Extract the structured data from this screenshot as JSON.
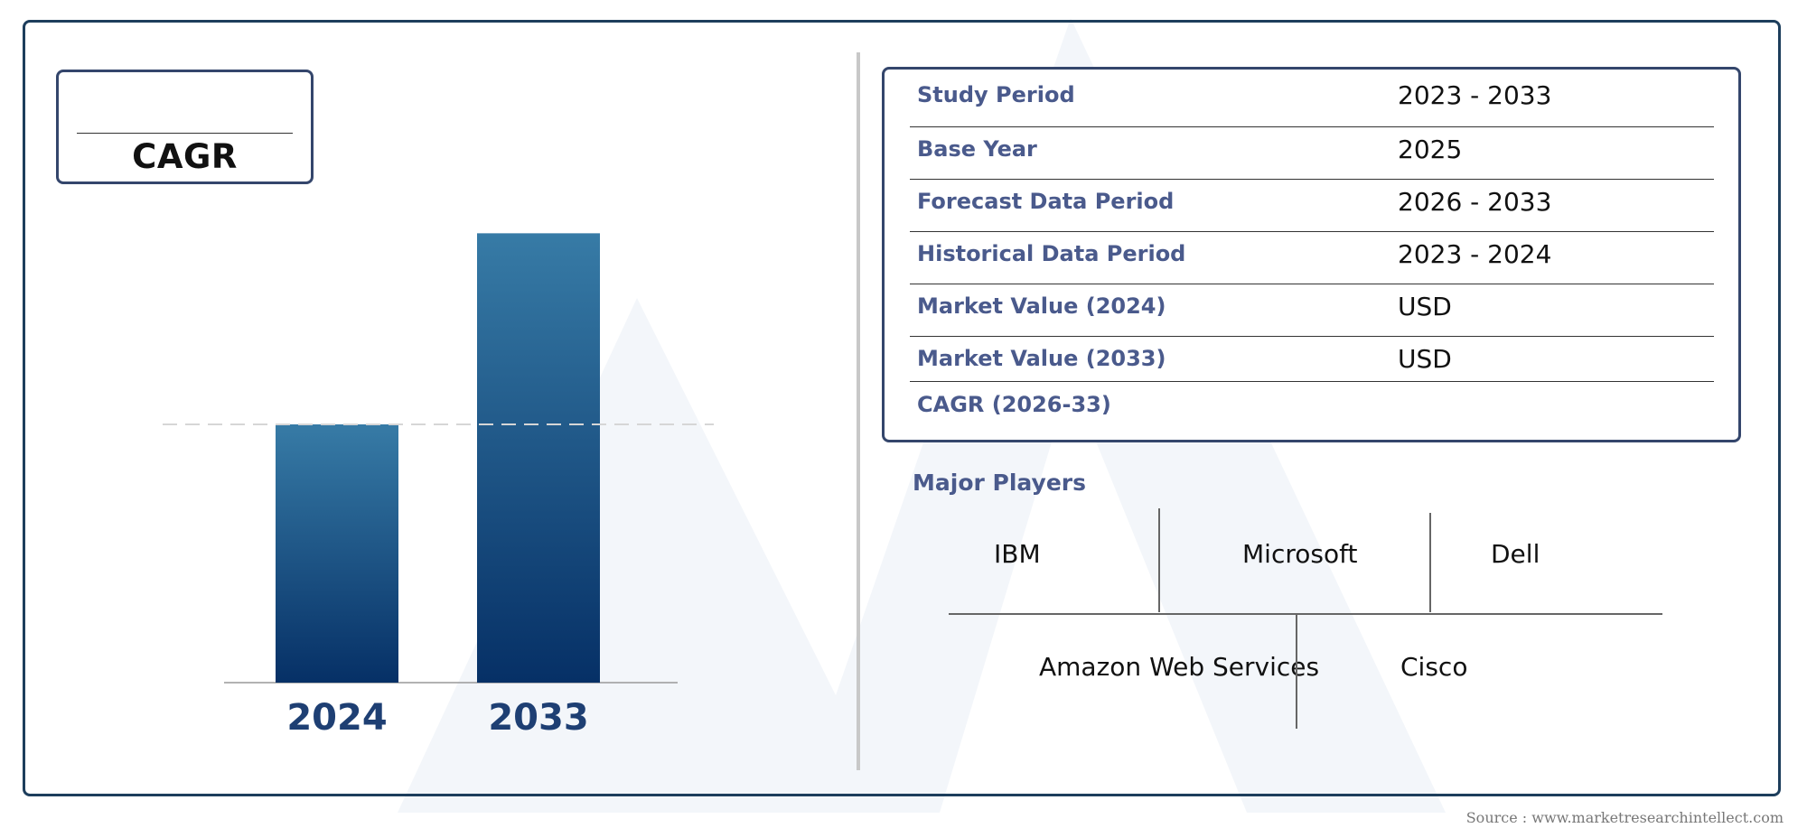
{
  "cagr_box": {
    "label": "CAGR"
  },
  "chart_data": {
    "type": "bar",
    "categories": [
      "2024",
      "2033"
    ],
    "values": [
      1.0,
      1.74
    ],
    "title": "",
    "xlabel": "",
    "ylabel": "",
    "grid": false,
    "reference_line": "dashed at 2024 level",
    "colors": {
      "bar_top": "#377ba6",
      "bar_bottom": "#063066",
      "label": "#1e3f73"
    }
  },
  "info_table": {
    "rows": [
      {
        "label": "Study Period",
        "value": "2023 - 2033"
      },
      {
        "label": "Base Year",
        "value": "2025"
      },
      {
        "label": "Forecast Data Period",
        "value": "2026 - 2033"
      },
      {
        "label": "Historical Data Period",
        "value": "2023 - 2024"
      },
      {
        "label": "Market Value (2024)",
        "value": "USD"
      },
      {
        "label": "Market Value (2033)",
        "value": "USD"
      },
      {
        "label": "CAGR (2026-33)",
        "value": ""
      }
    ]
  },
  "players": {
    "title": "Major Players",
    "names": [
      "IBM",
      "Microsoft",
      "Dell",
      "Amazon Web Services",
      "Cisco"
    ]
  },
  "source": "Source : www.marketresearchintellect.com",
  "colors": {
    "frame": "#1d3e5c",
    "box_border": "#34466c",
    "label": "#4a5a8c"
  }
}
